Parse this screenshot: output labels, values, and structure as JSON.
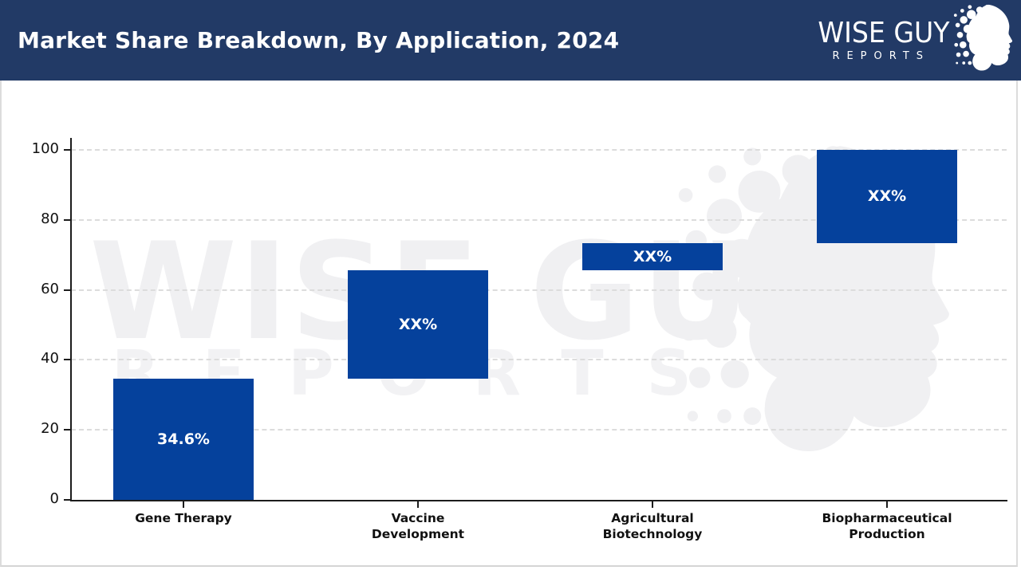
{
  "header": {
    "title": "Market Share Breakdown, By Application, 2024",
    "logo": {
      "line1": "WISE GUY",
      "line2": "REPORTS"
    }
  },
  "watermark": {
    "line1": "WISE GUY",
    "line2": "REPORTS"
  },
  "chart_data": {
    "type": "bar",
    "subtype": "waterfall",
    "title": "Market Share Breakdown, By Application, 2024",
    "categories": [
      "Gene Therapy",
      "Vaccine Development",
      "Agricultural Biotechnology",
      "Biopharmaceutical Production"
    ],
    "bars": [
      {
        "category_lines": [
          "Gene Therapy"
        ],
        "start": 0,
        "end": 34.6,
        "label": "34.6%"
      },
      {
        "category_lines": [
          "Vaccine",
          "Development"
        ],
        "start": 34.6,
        "end": 65.5,
        "label": "XX%"
      },
      {
        "category_lines": [
          "Agricultural",
          "Biotechnology"
        ],
        "start": 65.5,
        "end": 73.4,
        "label": "XX%"
      },
      {
        "category_lines": [
          "Biopharmaceutical",
          "Production"
        ],
        "start": 73.4,
        "end": 100,
        "label": "XX%"
      }
    ],
    "xlabel": "",
    "ylabel": "",
    "ylim": [
      0,
      100
    ],
    "yticks": [
      0,
      20,
      40,
      60,
      80,
      100
    ],
    "grid": "horizontal-dashed",
    "legend": "none",
    "colors": {
      "bar": "#05419c",
      "bar_label": "#ffffff",
      "axis": "#1c1c1c",
      "grid": "#dcdcdc",
      "tick_label": "#111111",
      "header_bg": "#223a66",
      "header_text": "#ffffff",
      "watermark": "#f0f0f2"
    }
  }
}
